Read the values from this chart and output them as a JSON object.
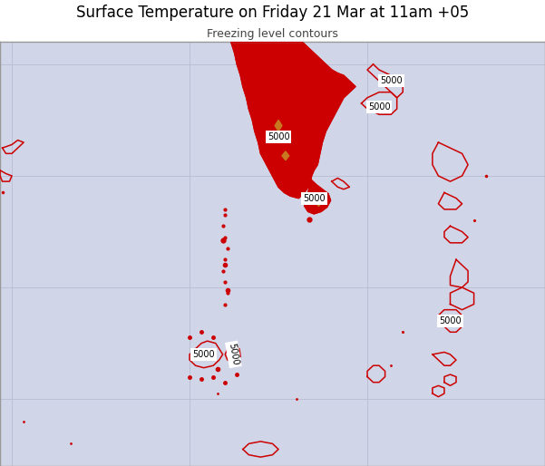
{
  "title": "Surface Temperature on Friday 21 Mar at 11am +05",
  "subtitle": "Freezing level contours",
  "title_fontsize": 12,
  "subtitle_fontsize": 9,
  "background_color": "#ffffff",
  "map_background": "#d0d5e8",
  "border_color": "#999999",
  "grid_color": "#b8bdd4",
  "contour_color": "#cc0000",
  "land_fill_color": "#cc0000",
  "land_highlight_color": "#c87820",
  "contour_label_fontsize": 7,
  "lon_min": 54.0,
  "lon_max": 100.0,
  "lat_min": -16.0,
  "lat_max": 22.0,
  "grid_lons": [
    55,
    70,
    85,
    100
  ],
  "grid_lats": [
    -10,
    0,
    10,
    20
  ]
}
